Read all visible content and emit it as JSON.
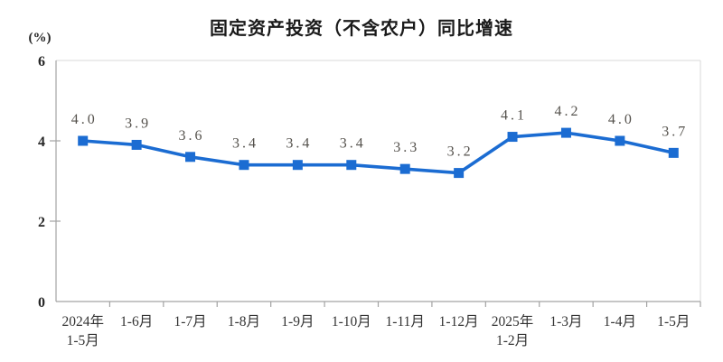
{
  "chart_data": {
    "type": "line",
    "title": "固定资产投资（不含农户）同比增速",
    "unit_label": "(%)",
    "categories": [
      "2024年\n1-5月",
      "1-6月",
      "1-7月",
      "1-8月",
      "1-9月",
      "1-10月",
      "1-11月",
      "1-12月",
      "2025年\n1-2月",
      "1-3月",
      "1-4月",
      "1-5月"
    ],
    "series": [
      {
        "name": "固定资产投资（不含农户）同比增速",
        "values": [
          4.0,
          3.9,
          3.6,
          3.4,
          3.4,
          3.4,
          3.3,
          3.2,
          4.1,
          4.2,
          4.0,
          3.7
        ]
      }
    ],
    "value_decimals": 1,
    "ylim": [
      0,
      6
    ],
    "yticks": [
      0,
      2,
      4,
      6
    ],
    "grid": false,
    "legend_position": "none",
    "marker": "square",
    "colors": {
      "series": "#1b6cd2",
      "axis": "#a3a3a3",
      "plot_border": "#d9d9d9",
      "title": "#1a1a1a",
      "y_tick_label": "#262626",
      "x_tick_label": "#333333",
      "data_label": "#55524d",
      "background": "#ffffff"
    }
  }
}
